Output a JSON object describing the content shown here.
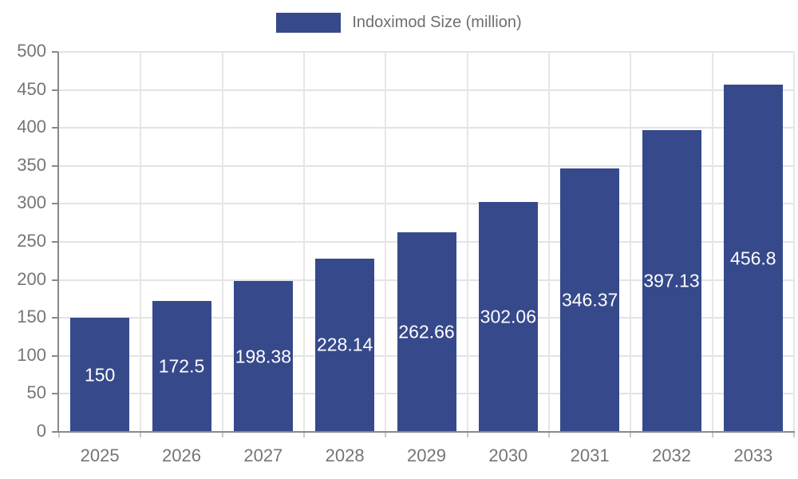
{
  "legend": {
    "label": "Indoximod Size (million)",
    "swatch_color": "#36498b"
  },
  "chart_data": {
    "type": "bar",
    "title": "Indoximod Size (million)",
    "categories": [
      "2025",
      "2026",
      "2027",
      "2028",
      "2029",
      "2030",
      "2031",
      "2032",
      "2033"
    ],
    "values": [
      150,
      172.5,
      198.38,
      228.14,
      262.66,
      302.06,
      346.37,
      397.13,
      456.8
    ],
    "value_labels": [
      "150",
      "172.5",
      "198.38",
      "228.14",
      "262.66",
      "302.06",
      "346.37",
      "397.13",
      "456.8"
    ],
    "xlabel": "",
    "ylabel": "",
    "ylim": [
      0,
      500
    ],
    "ytick_step": 50,
    "ytick_labels": [
      "0",
      "50",
      "100",
      "150",
      "200",
      "250",
      "300",
      "350",
      "400",
      "450",
      "500"
    ],
    "grid": true,
    "legend_position": "top-center",
    "bar_color": "#36498b",
    "label_position": "inside-center",
    "label_color": "#ffffff",
    "axis_color": "#898989",
    "gridline_color": "#e3e3e3",
    "tick_label_color": "#757575"
  }
}
